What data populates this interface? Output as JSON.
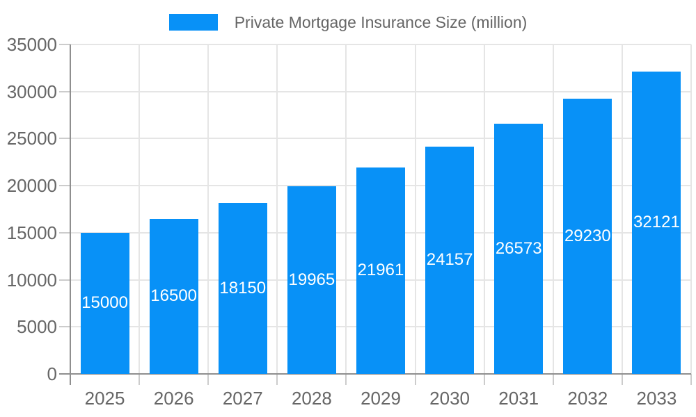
{
  "chart_data": {
    "type": "bar",
    "title": "Private Mortgage Insurance Size (million)",
    "categories": [
      "2025",
      "2026",
      "2027",
      "2028",
      "2029",
      "2030",
      "2031",
      "2032",
      "2033"
    ],
    "values": [
      15000,
      16500,
      18150,
      19965,
      21961,
      24157,
      26573,
      29230,
      32121
    ],
    "bar_value_labels": [
      "15000",
      "16500",
      "18150",
      "19965",
      "21961",
      "24157",
      "26573",
      "29230",
      "32121"
    ],
    "xlabel": "",
    "ylabel": "",
    "ylim": [
      0,
      35000
    ],
    "ytick_step": 5000,
    "yticks": [
      0,
      5000,
      10000,
      15000,
      20000,
      25000,
      30000,
      35000
    ],
    "grid": true,
    "legend_position": "top",
    "colors": {
      "bar": "#0891f7",
      "bar_label": "#ffffff",
      "axis_text": "#666666",
      "legend_text": "#666666",
      "gridline": "#e5e5e5",
      "axis_line": "#8f8f8f",
      "tick_mark": "#cccccc",
      "background": "#ffffff"
    }
  },
  "legend": {
    "label": "Private Mortgage Insurance Size (million)"
  }
}
